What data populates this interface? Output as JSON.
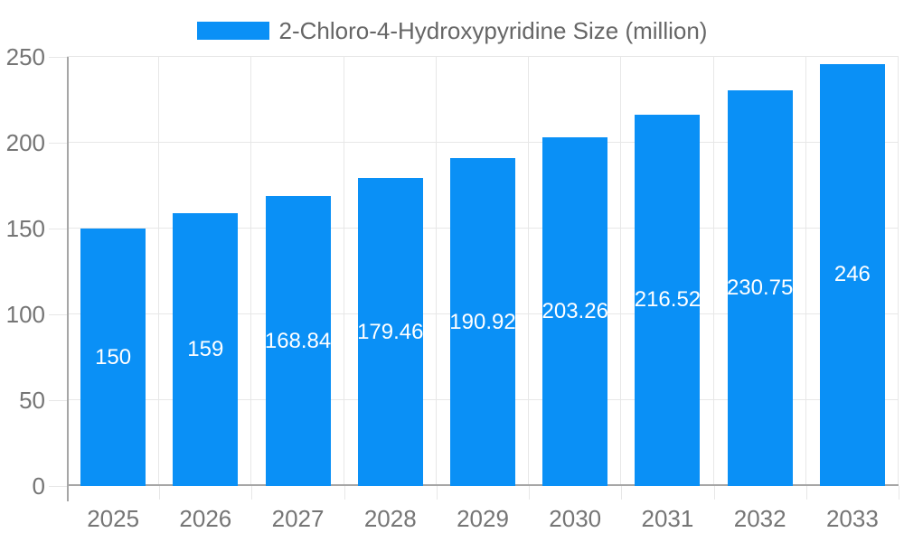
{
  "chart": {
    "colors": {
      "bar": "#0A90F6",
      "grid": "#e7e7e7",
      "axis": "#a6a6a6",
      "tick_label": "#757575",
      "legend_text": "#666666",
      "value_label": "#ffffff",
      "background": "#ffffff"
    }
  },
  "chart_data": {
    "type": "bar",
    "title": "2-Chloro-4-Hydroxypyridine Size (million)",
    "legend_position": "top",
    "grid": true,
    "categories": [
      "2025",
      "2026",
      "2027",
      "2028",
      "2029",
      "2030",
      "2031",
      "2032",
      "2033"
    ],
    "series": [
      {
        "name": "2-Chloro-4-Hydroxypyridine Size (million)",
        "values": [
          150,
          159,
          168.84,
          179.46,
          190.92,
          203.26,
          216.52,
          230.75,
          246
        ]
      }
    ],
    "value_labels": [
      "150",
      "159",
      "168.84",
      "179.46",
      "190.92",
      "203.26",
      "216.52",
      "230.75",
      "246"
    ],
    "xlabel": "",
    "ylabel": "",
    "ylim": [
      0,
      250
    ],
    "yticks": [
      0,
      50,
      100,
      150,
      200,
      250
    ]
  }
}
